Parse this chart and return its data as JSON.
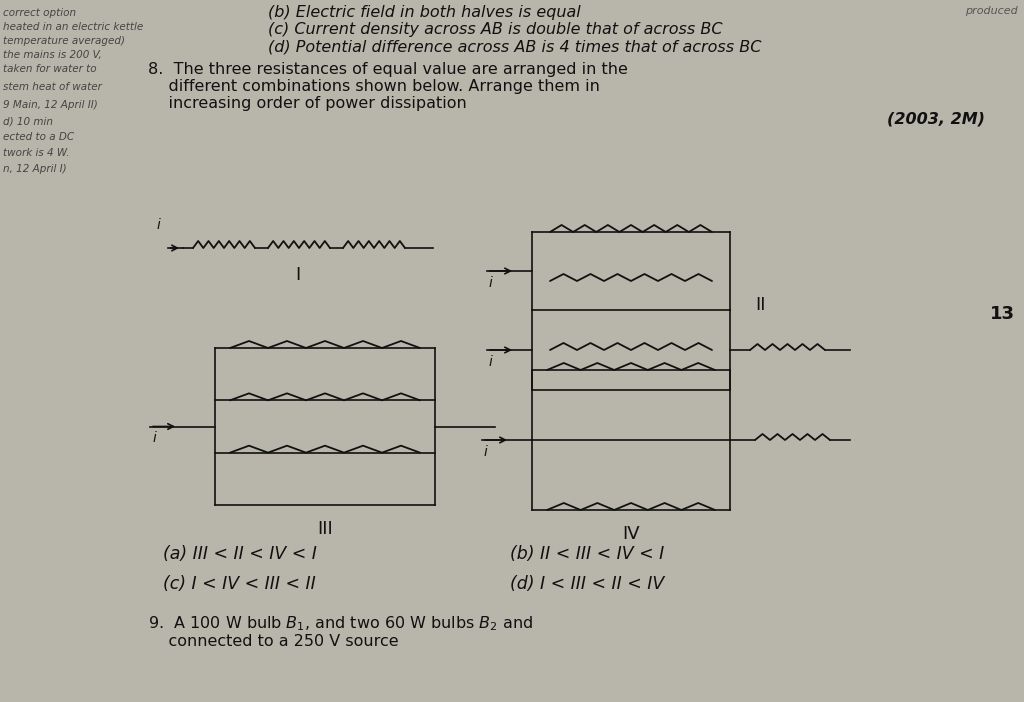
{
  "bg_color": "#b8b5aa",
  "text_color": "#111111",
  "title_b": "(b) Electric field in both halves is equal",
  "title_c": "(c) Current density across AB is double that of across BC",
  "title_d": "(d) Potential difference across AB is 4 times that of across BC",
  "q8_year": "(2003, 2M)",
  "options_a": "(a) III < II < IV < I",
  "options_b": "(b) II < III < IV < I",
  "options_c": "(c) I < IV < III < II",
  "options_d": "(d) I < III < II < IV",
  "left_margin_texts": [
    "correct option",
    "heated in an electric kettle",
    "temperature averaged)",
    "the mains is 200 V,",
    "taken for water to",
    "stem heat of water",
    "9 Main, 12 April II)",
    "d) 10 min",
    "ected to a DC",
    "twork is 4 W.",
    "n, 12 April I)"
  ],
  "right_margin_text": "produced",
  "page_num": "13"
}
